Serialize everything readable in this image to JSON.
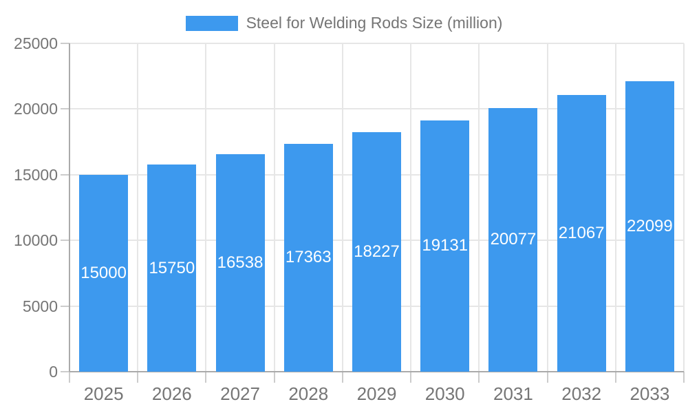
{
  "chart_data": {
    "type": "bar",
    "title": "Steel for Welding Rods Size (million)",
    "categories": [
      "2025",
      "2026",
      "2027",
      "2028",
      "2029",
      "2030",
      "2031",
      "2032",
      "2033"
    ],
    "values": [
      15000,
      15750,
      16538,
      17363,
      18227,
      19131,
      20077,
      21067,
      22099
    ],
    "ylim": [
      0,
      25000
    ],
    "yticks": [
      0,
      5000,
      10000,
      15000,
      20000,
      25000
    ],
    "xlabel": "",
    "ylabel": "",
    "legend_position": "top",
    "grid": true,
    "bar_labels_inside": true
  },
  "colors": {
    "bar": "#3d99ee",
    "grid": "#e6e6e6",
    "axis": "#aaaaaa",
    "tick": "#cccccc",
    "text": "#757575",
    "bar_label": "#ffffff",
    "background": "#ffffff"
  }
}
